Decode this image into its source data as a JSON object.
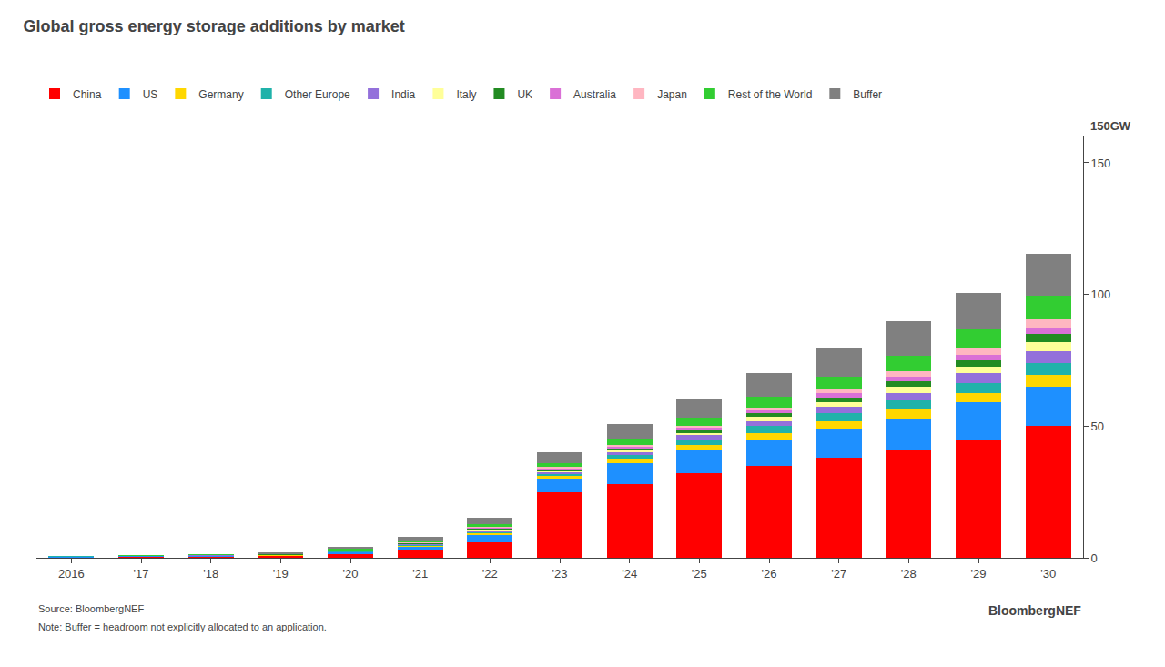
{
  "chart_data": {
    "type": "bar",
    "title": "Global gross energy storage additions by market",
    "ylabel": "150GW",
    "categories": [
      "2016",
      "'17",
      "'18",
      "'19",
      "'20",
      "'21",
      "'22",
      "'23",
      "'24",
      "'25",
      "'26",
      "'27",
      "'28",
      "'29",
      "'30"
    ],
    "series": [
      {
        "name": "China",
        "color": "#FF0000",
        "values": [
          0.3,
          0.5,
          0.6,
          0.7,
          1.5,
          3.0,
          6.0,
          25.0,
          28.0,
          32.0,
          35.0,
          38.0,
          41.0,
          45.0,
          50.0
        ]
      },
      {
        "name": "US",
        "color": "#1E90FF",
        "values": [
          0.1,
          0.2,
          0.2,
          0.3,
          0.6,
          1.2,
          2.5,
          5.0,
          8.0,
          9.0,
          10.0,
          11.0,
          12.0,
          14.0,
          15.0
        ]
      },
      {
        "name": "Germany",
        "color": "#FFD700",
        "values": [
          0.05,
          0.05,
          0.1,
          0.1,
          0.2,
          0.4,
          0.8,
          1.0,
          1.5,
          2.0,
          2.5,
          2.8,
          3.2,
          3.5,
          4.5
        ]
      },
      {
        "name": "Other Europe",
        "color": "#20B2AA",
        "values": [
          0.05,
          0.05,
          0.1,
          0.1,
          0.2,
          0.4,
          0.7,
          1.0,
          1.5,
          2.0,
          2.5,
          3.0,
          3.5,
          4.0,
          4.5
        ]
      },
      {
        "name": "India",
        "color": "#9370DB",
        "values": [
          0.0,
          0.0,
          0.05,
          0.1,
          0.1,
          0.2,
          0.4,
          0.6,
          1.0,
          1.5,
          2.0,
          2.5,
          3.0,
          3.5,
          4.5
        ]
      },
      {
        "name": "Italy",
        "color": "#FFFF99",
        "values": [
          0.0,
          0.0,
          0.05,
          0.05,
          0.1,
          0.2,
          0.4,
          0.5,
          0.8,
          1.0,
          1.5,
          1.8,
          2.2,
          2.5,
          3.5
        ]
      },
      {
        "name": "UK",
        "color": "#228B22",
        "values": [
          0.0,
          0.0,
          0.05,
          0.05,
          0.1,
          0.2,
          0.4,
          0.5,
          0.8,
          1.0,
          1.5,
          1.8,
          2.0,
          2.5,
          3.0
        ]
      },
      {
        "name": "Australia",
        "color": "#DA70D6",
        "values": [
          0.0,
          0.0,
          0.05,
          0.05,
          0.1,
          0.2,
          0.3,
          0.5,
          0.7,
          0.8,
          1.0,
          1.5,
          1.8,
          2.2,
          2.5
        ]
      },
      {
        "name": "Japan",
        "color": "#FFB6C1",
        "values": [
          0.0,
          0.0,
          0.0,
          0.05,
          0.1,
          0.1,
          0.2,
          0.4,
          0.6,
          0.8,
          1.0,
          1.5,
          2.0,
          2.5,
          3.0
        ]
      },
      {
        "name": "Rest of the World",
        "color": "#32CD32",
        "values": [
          0.0,
          0.05,
          0.1,
          0.2,
          0.4,
          0.6,
          1.0,
          1.5,
          2.5,
          3.0,
          4.0,
          5.0,
          6.0,
          7.0,
          9.0
        ]
      },
      {
        "name": "Buffer",
        "color": "#808080",
        "values": [
          0.0,
          0.0,
          0.0,
          0.3,
          0.8,
          1.5,
          2.5,
          4.0,
          5.5,
          7.0,
          9.0,
          11.0,
          13.0,
          14.0,
          16.0
        ]
      }
    ],
    "stacked": true,
    "ylim": [
      0,
      160
    ],
    "yticks": [
      0,
      50,
      100,
      150
    ],
    "grid": false,
    "legend": "top",
    "annotations": [
      "Source: BloombergNEF",
      "Note: Buffer = headroom not explicitly allocated to an application.",
      "BloombergNEF"
    ]
  }
}
